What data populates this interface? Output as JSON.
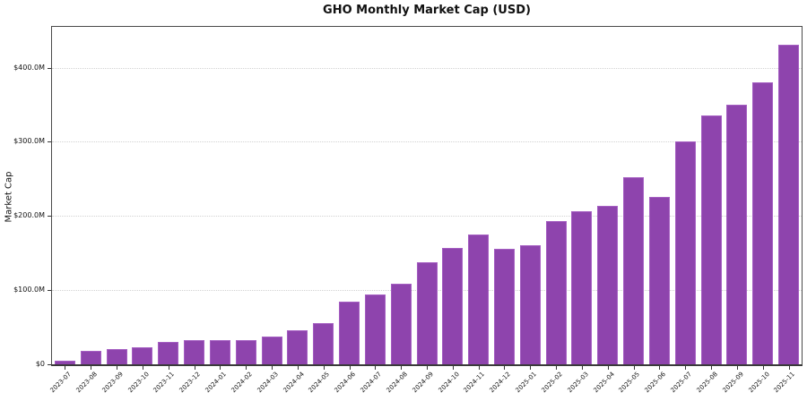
{
  "chart_data": {
    "type": "bar",
    "title": "GHO Monthly Market Cap (USD)",
    "xlabel": "",
    "ylabel": "Market Cap",
    "legend": "none",
    "grid": "horizontal-dotted",
    "bar_color": "#8e44ad",
    "bar_edge_color": "#a55fc2",
    "ylim": [
      0,
      455
    ],
    "categories": [
      "2023-07",
      "2023-08",
      "2023-09",
      "2023-10",
      "2023-11",
      "2023-12",
      "2024-01",
      "2024-02",
      "2024-03",
      "2024-04",
      "2024-05",
      "2024-06",
      "2024-07",
      "2024-08",
      "2024-09",
      "2024-10",
      "2024-11",
      "2024-12",
      "2025-01",
      "2025-02",
      "2025-03",
      "2025-04",
      "2025-05",
      "2025-06",
      "2025-07",
      "2025-08",
      "2025-09",
      "2025-10",
      "2025-11"
    ],
    "values": [
      5,
      18,
      21,
      23,
      30,
      33,
      33,
      32,
      37,
      46,
      56,
      85,
      94,
      109,
      138,
      157,
      175,
      156,
      161,
      193,
      206,
      214,
      252,
      226,
      300,
      336,
      350,
      380,
      431
    ],
    "values_unit_label": "M",
    "currency_prefix": "$",
    "yticks": [
      {
        "value": 0,
        "label": "$0"
      },
      {
        "value": 100,
        "label": "$100.0M"
      },
      {
        "value": 200,
        "label": "$200.0M"
      },
      {
        "value": 300,
        "label": "$300.0M"
      },
      {
        "value": 400,
        "label": "$400.0M"
      }
    ]
  }
}
